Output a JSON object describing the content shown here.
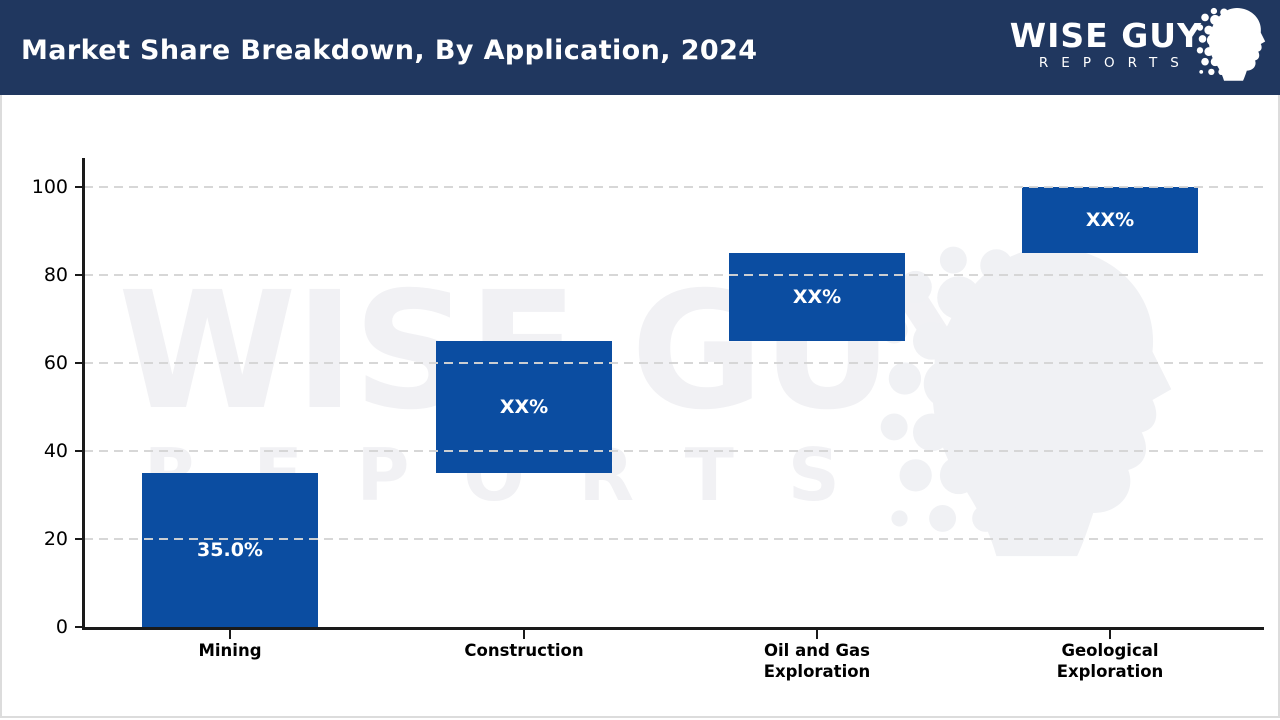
{
  "header": {
    "title": "Market Share Breakdown, By Application, 2024",
    "logo": {
      "line1": "WISE GUY",
      "line2": "REPORTS"
    }
  },
  "watermark": {
    "line1": "WISE GUY",
    "line2": "REPORTS"
  },
  "colors": {
    "header_bg": "#20375f",
    "bar": "#0b4da1",
    "grid": "#d5d5d5",
    "axis": "#1a1a1a",
    "bar_label": "#ffffff",
    "watermark": "#f1f1f4"
  },
  "chart_data": {
    "type": "bar",
    "subtype": "waterfall",
    "title": "Market Share Breakdown, By Application, 2024",
    "xlabel": "",
    "ylabel": "",
    "categories": [
      "Mining",
      "Construction",
      "Oil and Gas\nExploration",
      "Geological\nExploration"
    ],
    "values": [
      35,
      30,
      20,
      15
    ],
    "segments": [
      {
        "category": "Mining",
        "start": 0,
        "end": 35,
        "label": "35.0%"
      },
      {
        "category": "Construction",
        "start": 35,
        "end": 65,
        "label": "XX%"
      },
      {
        "category": "Oil and Gas Exploration",
        "start": 65,
        "end": 85,
        "label": "XX%"
      },
      {
        "category": "Geological Exploration",
        "start": 85,
        "end": 100,
        "label": "XX%"
      }
    ],
    "yticks": [
      0,
      20,
      40,
      60,
      80,
      100
    ],
    "ylim": [
      0,
      100
    ],
    "grid": "horizontal-dashed",
    "legend": "none",
    "bar_color": "#0b4da1",
    "label_color": "#ffffff"
  }
}
